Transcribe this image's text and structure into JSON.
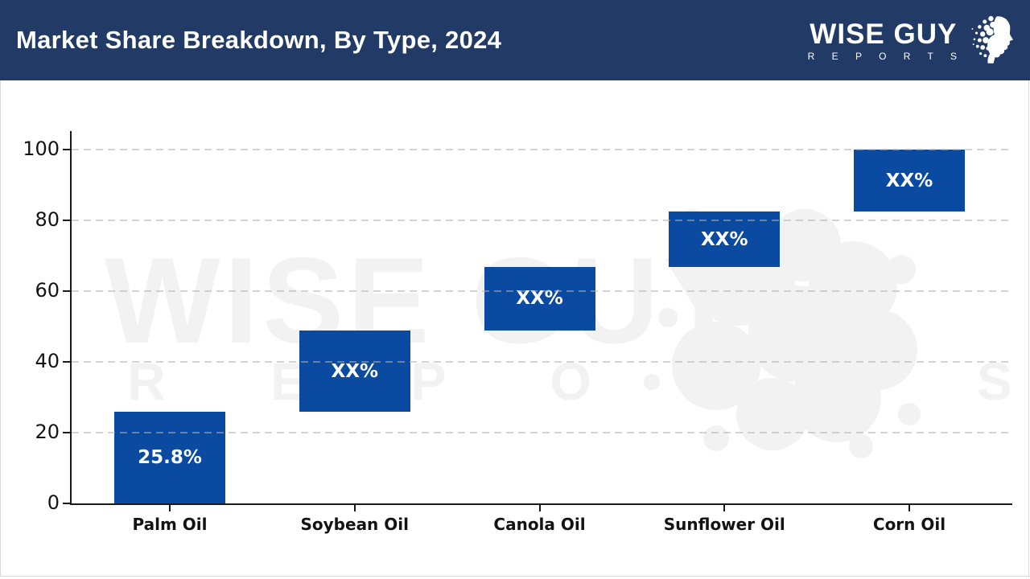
{
  "header": {
    "title": "Market Share Breakdown, By Type, 2024",
    "logo": {
      "brand": "WISE GUY",
      "sub": "R E P O R T S"
    }
  },
  "watermark": {
    "line1": "WISE GUY",
    "line2": "R E P O R T S"
  },
  "chart_data": {
    "type": "bar",
    "subtype": "waterfall",
    "title": "Market Share Breakdown, By Type, 2024",
    "categories": [
      "Palm Oil",
      "Soybean Oil",
      "Canola Oil",
      "Sunflower Oil",
      "Corn Oil"
    ],
    "segments": [
      {
        "category": "Palm Oil",
        "start": 0,
        "end": 25.8,
        "label": "25.8%"
      },
      {
        "category": "Soybean Oil",
        "start": 25.8,
        "end": 48.9,
        "label": "XX%"
      },
      {
        "category": "Canola Oil",
        "start": 48.9,
        "end": 66.8,
        "label": "XX%"
      },
      {
        "category": "Sunflower Oil",
        "start": 66.8,
        "end": 82.5,
        "label": "XX%"
      },
      {
        "category": "Corn Oil",
        "start": 82.5,
        "end": 100,
        "label": "XX%"
      }
    ],
    "ylim": [
      0,
      100
    ],
    "yticks": [
      0,
      20,
      40,
      60,
      80,
      100
    ],
    "xlabel": "",
    "ylabel": "",
    "legend": "none",
    "grid": "horizontal dashed, drawn over bars"
  },
  "colors": {
    "header_bg": "#213A66",
    "bar": "#0B4AA1",
    "bar_label": "#ffffff",
    "axis": "#1a1a1a",
    "grid": "#dcdcdc",
    "watermark": "#f2f2f2",
    "page_bg": "#ffffff"
  }
}
